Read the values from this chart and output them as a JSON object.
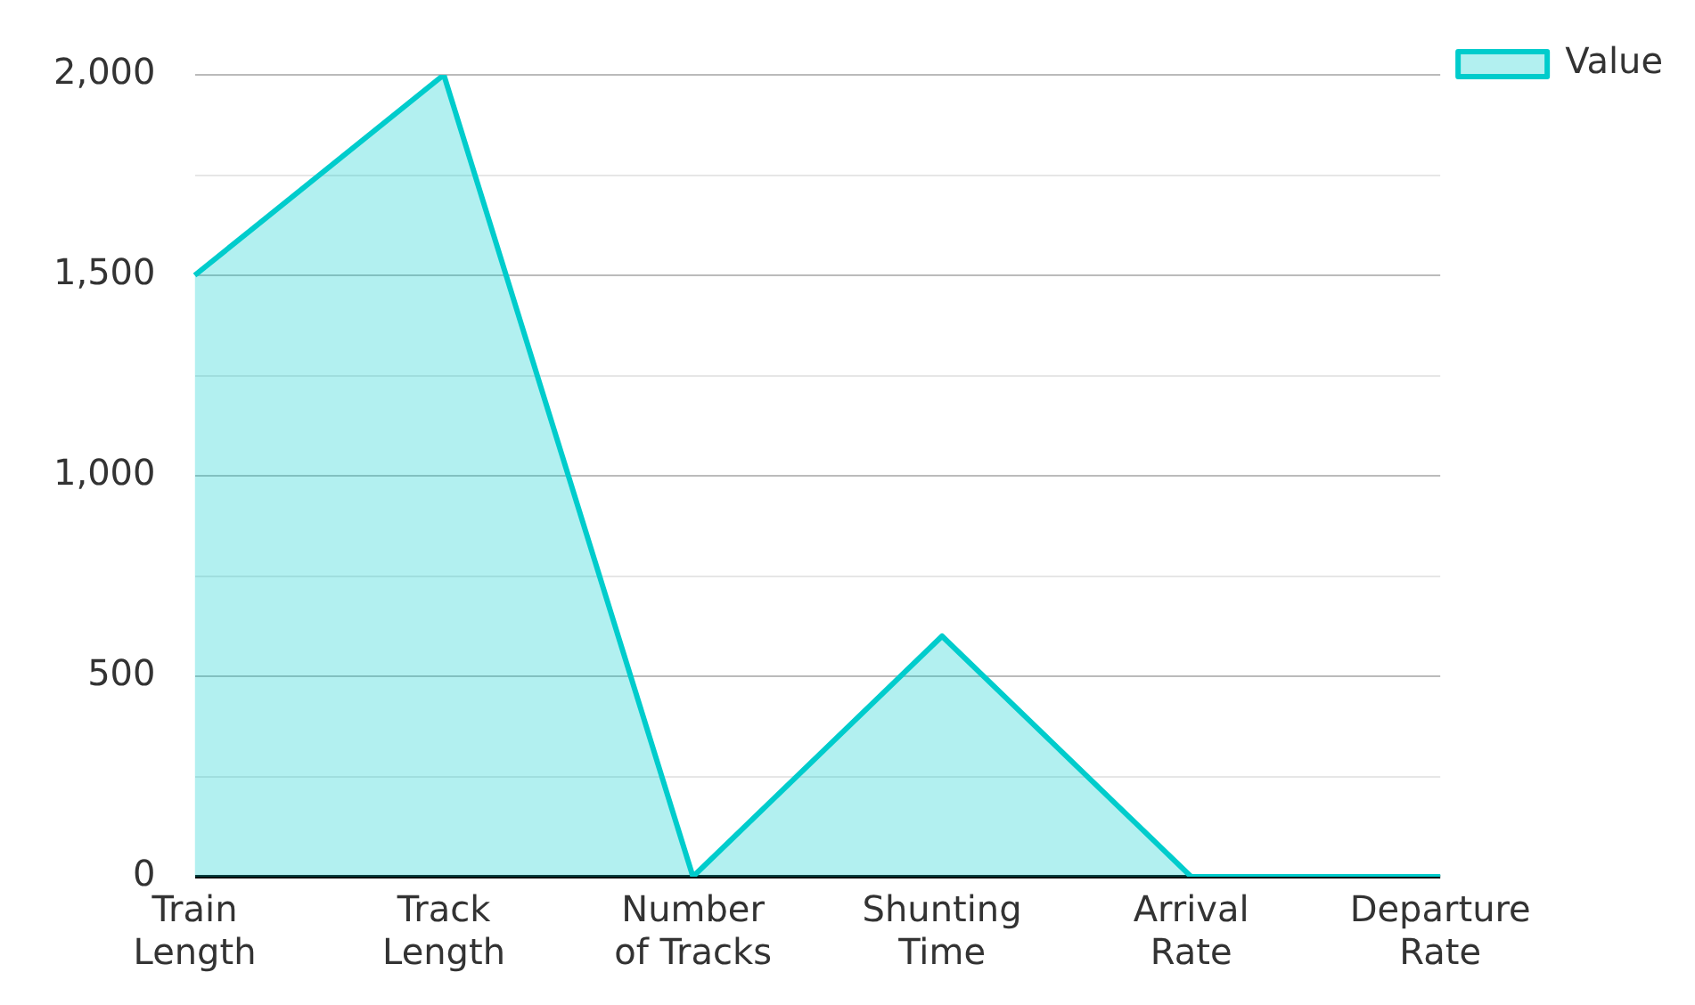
{
  "chart_data": {
    "type": "area",
    "categories": [
      "Train Length",
      "Track Length",
      "Number of Tracks",
      "Shunting Time",
      "Arrival Rate",
      "Departure Rate"
    ],
    "series": [
      {
        "name": "Value",
        "color": "#00cccc",
        "values": [
          1500,
          2000,
          0,
          600,
          0,
          0
        ]
      }
    ],
    "ylim": [
      0,
      2000
    ],
    "yticks": [
      0,
      {
        "value": 250,
        "label": null
      },
      500,
      {
        "value": 750,
        "label": null
      },
      {
        "value": 1000,
        "label": "1,000"
      },
      {
        "value": 1250,
        "label": null
      },
      {
        "value": 1500,
        "label": "1,500"
      },
      {
        "value": 1750,
        "label": null
      },
      {
        "value": 2000,
        "label": "2,000"
      }
    ],
    "grid": "y",
    "legend": "top right",
    "marker": "none",
    "line_style": "solid"
  }
}
